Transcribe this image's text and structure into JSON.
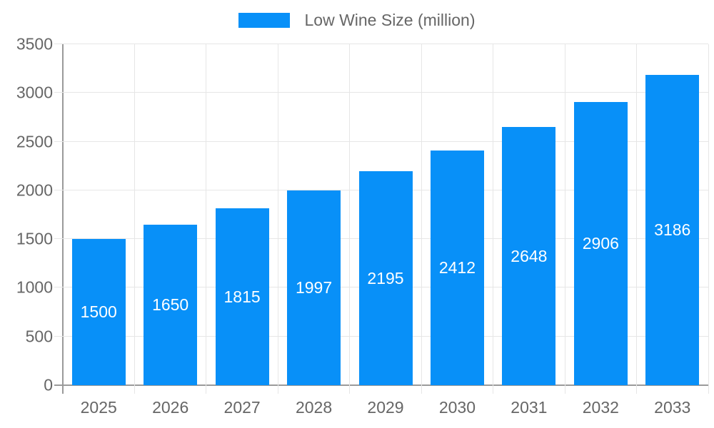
{
  "legend": {
    "label": "Low Wine Size (million)",
    "swatch_color": "#0890f8"
  },
  "chart_data": {
    "type": "bar",
    "title": "Low Wine Size (million)",
    "categories": [
      "2025",
      "2026",
      "2027",
      "2028",
      "2029",
      "2030",
      "2031",
      "2032",
      "2033"
    ],
    "values": [
      1500,
      1650,
      1815,
      1997,
      2195,
      2412,
      2648,
      2906,
      3186
    ],
    "series_name": "Low Wine Size (million)",
    "xlabel": "",
    "ylabel": "",
    "ylim": [
      0,
      3500
    ],
    "yticks": [
      0,
      500,
      1000,
      1500,
      2000,
      2500,
      3000,
      3500
    ],
    "grid": true,
    "legend_position": "top",
    "colors": {
      "bar": "#0890f8",
      "value_label": "#ffffff",
      "axis_text": "#666666",
      "gridline": "#e6e6e6",
      "axis_line": "#9a9a9a"
    }
  }
}
